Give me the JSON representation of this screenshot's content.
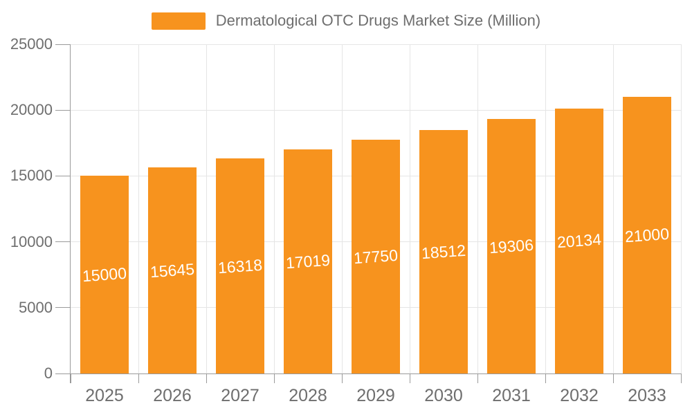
{
  "chart_data": {
    "type": "bar",
    "title": "Dermatological OTC Drugs Market Size (Million)",
    "categories": [
      "2025",
      "2026",
      "2027",
      "2028",
      "2029",
      "2030",
      "2031",
      "2032",
      "2033"
    ],
    "values": [
      15000,
      15645,
      16318,
      17019,
      17750,
      18512,
      19306,
      20134,
      21000
    ],
    "xlabel": "",
    "ylabel": "",
    "ylim": [
      0,
      25000
    ],
    "yticks": [
      0,
      5000,
      10000,
      15000,
      20000,
      25000
    ],
    "grid": true,
    "legend_position": "top-center",
    "bar_label_position": "inside-center"
  },
  "colors": {
    "bar": "#f7931e",
    "grid": "#e5e5e5",
    "axis": "#9a9a9a",
    "axis_text": "#6e6e6e",
    "bar_label": "#ffffff",
    "background": "#ffffff"
  }
}
